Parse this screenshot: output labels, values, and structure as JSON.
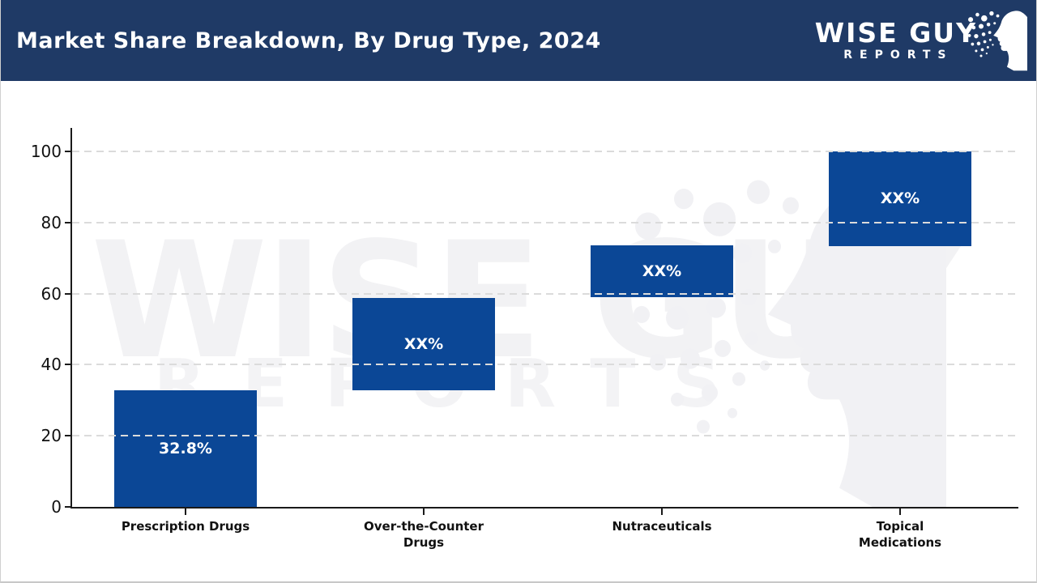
{
  "header": {
    "title": "Market Share Breakdown, By Drug Type, 2024",
    "logo": {
      "line1": "WISE GUY",
      "line2": "REPORTS"
    },
    "bg_color": "#1F3A66"
  },
  "watermark": {
    "line1": "WISE GUY",
    "line2": "REPORTS"
  },
  "chart_data": {
    "type": "bar",
    "subtype": "waterfall-floating-bars",
    "title": "Market Share Breakdown, By Drug Type, 2024",
    "xlabel": "",
    "ylabel": "",
    "ylim": [
      0,
      100
    ],
    "yticks": [
      0,
      20,
      40,
      60,
      80,
      100
    ],
    "grid": "horizontal-dashed",
    "legend": "none",
    "bar_color": "#0B4796",
    "label_color": "#ffffff",
    "categories": [
      "Prescription Drugs",
      "Over-the-Counter Drugs",
      "Nutraceuticals",
      "Topical Medications"
    ],
    "bars": [
      {
        "category_lines": [
          "Prescription Drugs"
        ],
        "base": 0,
        "top": 32.8,
        "label": "32.8%"
      },
      {
        "category_lines": [
          "Over-the-Counter",
          "Drugs"
        ],
        "base": 32.8,
        "top": 58.8,
        "label": "XX%"
      },
      {
        "category_lines": [
          "Nutraceuticals"
        ],
        "base": 59.0,
        "top": 73.6,
        "label": "XX%"
      },
      {
        "category_lines": [
          "Topical",
          "Medications"
        ],
        "base": 73.4,
        "top": 100,
        "label": "XX%"
      }
    ]
  }
}
